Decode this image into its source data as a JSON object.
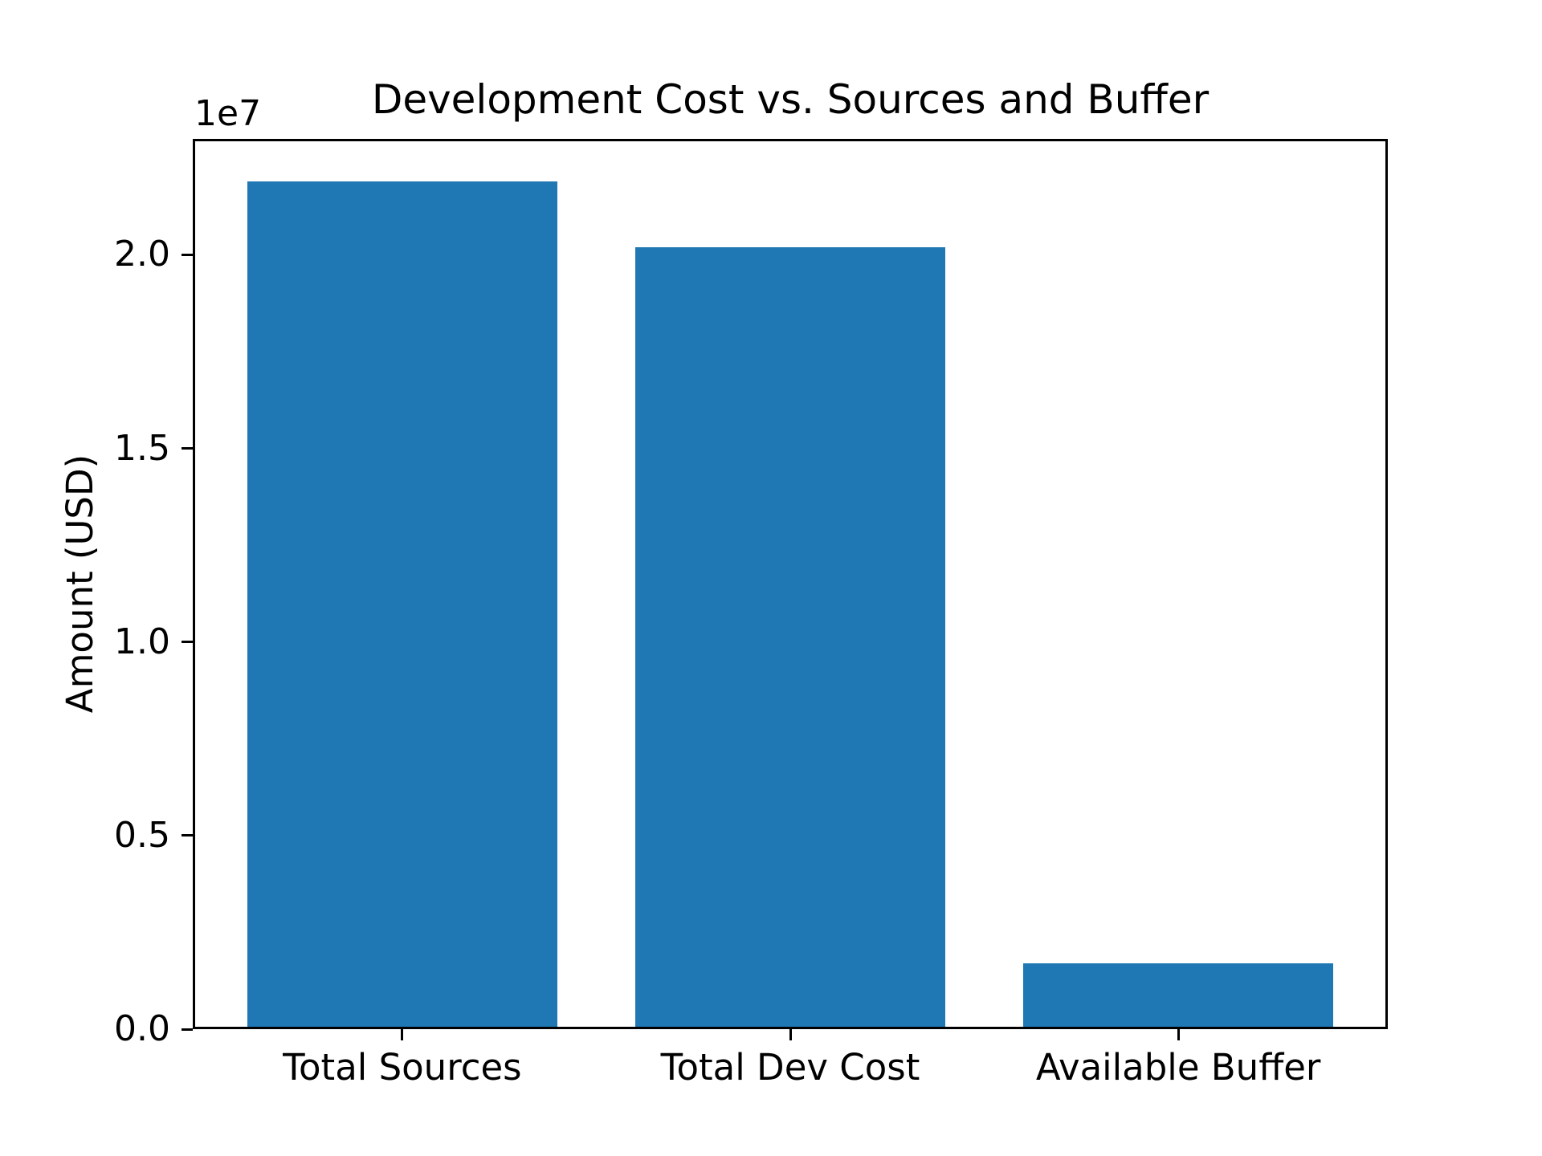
{
  "figure": {
    "kind": "matplotlib-bar-chart"
  },
  "chart_data": {
    "type": "bar",
    "title": "Development Cost vs. Sources and Buffer",
    "categories": [
      "Total Sources",
      "Total Dev Cost",
      "Available Buffer"
    ],
    "values": [
      21900000,
      20200000,
      1700000
    ],
    "xlabel": "",
    "ylabel": "Amount (USD)",
    "offset_text": "1e7",
    "ylim": [
      0,
      22995000
    ],
    "yticks": [
      0,
      5000000,
      10000000,
      15000000,
      20000000
    ],
    "ytick_labels": [
      "0.0",
      "0.5",
      "1.0",
      "1.5",
      "2.0"
    ],
    "bar_color": "#1f77b4",
    "axis_color": "#000000",
    "background_color": "#ffffff",
    "grid": false,
    "legend": null
  }
}
